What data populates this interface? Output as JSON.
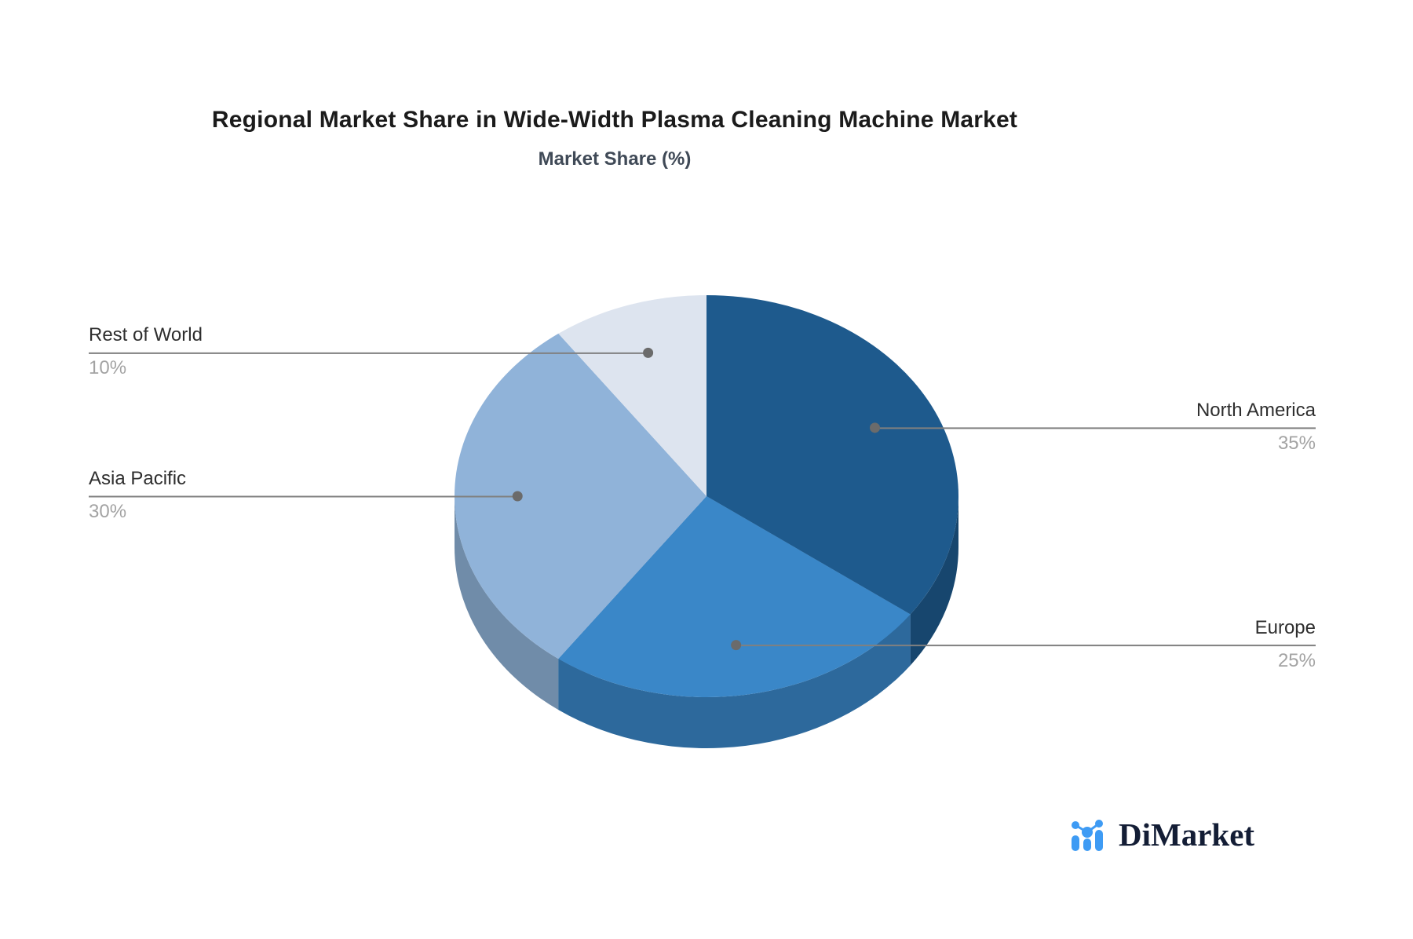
{
  "chart_data": {
    "type": "pie",
    "title": "Regional Market Share in Wide-Width Plasma Cleaning Machine Market",
    "subtitle": "Market Share (%)",
    "unit": "%",
    "start_angle_deg": 0,
    "direction": "clockwise",
    "effect": "3d",
    "slices": [
      {
        "name": "North America",
        "value": 35,
        "pct": "35%",
        "color": "#1e5a8d",
        "label_side": "right"
      },
      {
        "name": "Europe",
        "value": 25,
        "pct": "25%",
        "color": "#3a87c8",
        "label_side": "right"
      },
      {
        "name": "Asia Pacific",
        "value": 30,
        "pct": "30%",
        "color": "#90b3d9",
        "label_side": "left"
      },
      {
        "name": "Rest of World",
        "value": 10,
        "pct": "10%",
        "color": "#dde4ef",
        "label_side": "left"
      }
    ],
    "leader_line_color": "#808080",
    "leader_dot_color": "#6b6b6b",
    "label_name_color": "#2e2e2e",
    "label_pct_color": "#a3a3a3",
    "legend": "none",
    "grid": false
  },
  "logo": {
    "text": "DiMarket",
    "icon_color": "#3e9bf4",
    "text_color": "#131d35"
  }
}
